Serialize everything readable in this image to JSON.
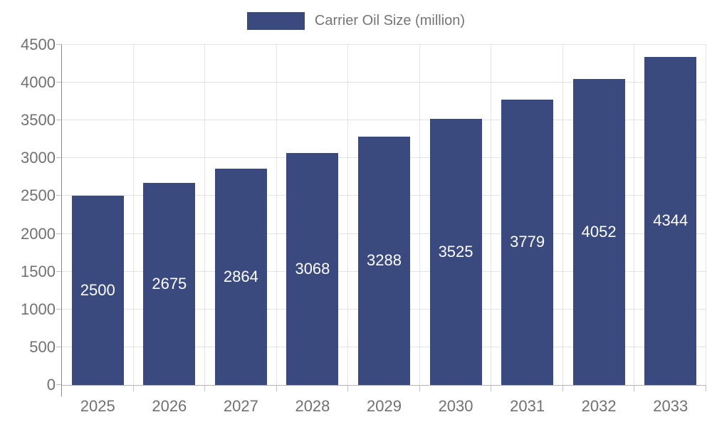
{
  "legend": {
    "label": "Carrier Oil Size (million)"
  },
  "colors": {
    "bar": "#3A4A7E",
    "legend_text": "#767676",
    "axis_text": "#717171",
    "y_axis_line": "#8a8a8a",
    "x_axis_line": "#b5b5b5",
    "gridline": "#e3e3e3",
    "value_label_text": "#ffffff",
    "background": "#ffffff"
  },
  "chart_data": {
    "type": "bar",
    "title": "",
    "xlabel": "",
    "ylabel": "",
    "series_name": "Carrier Oil Size (million)",
    "categories": [
      "2025",
      "2026",
      "2027",
      "2028",
      "2029",
      "2030",
      "2031",
      "2032",
      "2033"
    ],
    "values": [
      2500,
      2675,
      2864,
      3068,
      3288,
      3525,
      3779,
      4052,
      4344
    ],
    "bar_labels": [
      2500,
      2675,
      2864,
      3068,
      3288,
      3525,
      3779,
      4052,
      4344
    ],
    "ylim": [
      0,
      4500
    ],
    "yticks": [
      0,
      500,
      1000,
      1500,
      2000,
      2500,
      3000,
      3500,
      4000,
      4500
    ],
    "grid": true,
    "grid_vertical": true,
    "legend_position": "top-center",
    "value_label_position": "bar-center"
  }
}
